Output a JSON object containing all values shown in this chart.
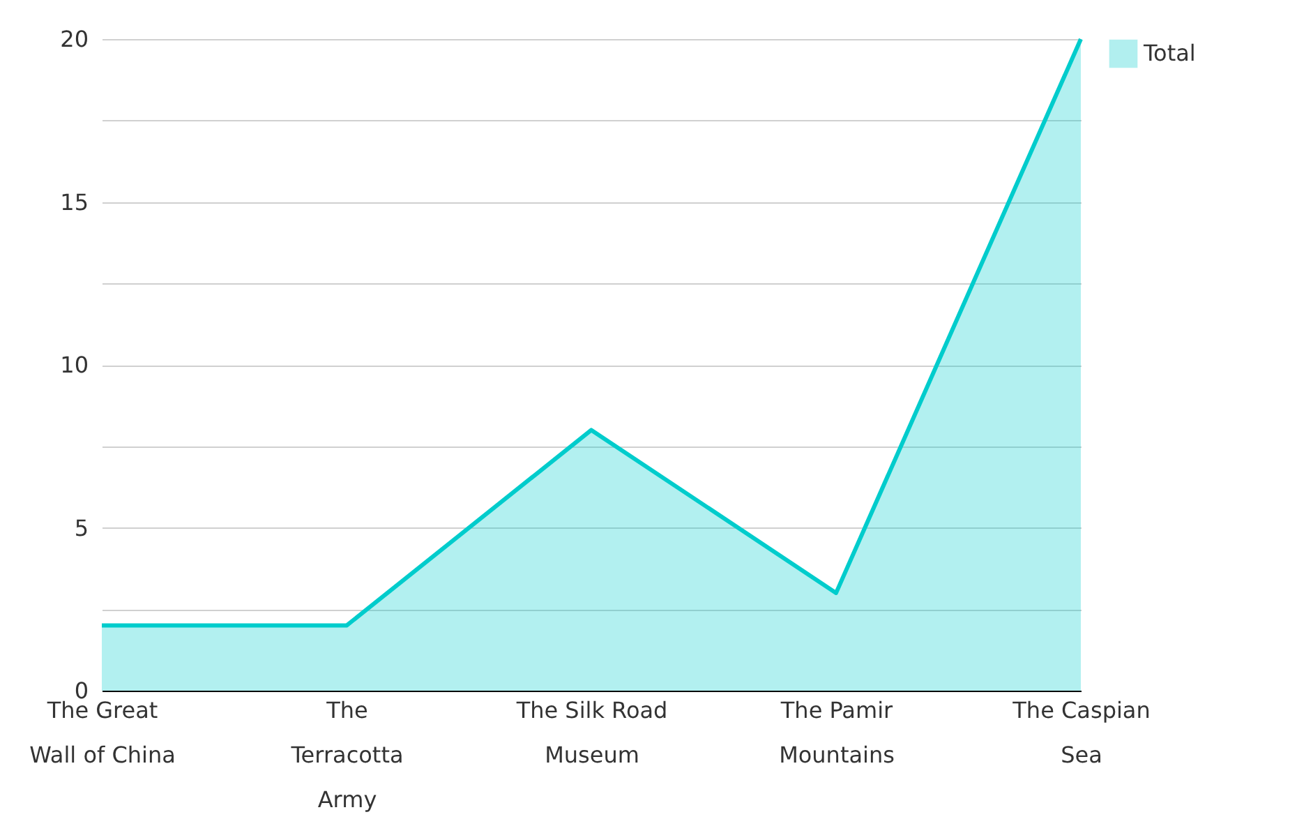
{
  "chart_data": {
    "type": "area",
    "categories": [
      "The Great Wall of China",
      "The Terracotta Army",
      "The Silk Road Museum",
      "The Pamir Mountains",
      "The Caspian Sea"
    ],
    "series": [
      {
        "name": "Total",
        "color": "#00cccc",
        "values": [
          2,
          2,
          8,
          3,
          20
        ]
      }
    ],
    "ylim": [
      0,
      20
    ],
    "yticks": [
      0,
      {
        "value": 2.5,
        "label": null
      },
      5,
      {
        "value": 7.5,
        "label": null
      },
      10,
      {
        "value": 12.5,
        "label": null
      },
      15,
      {
        "value": 17.5,
        "label": null
      },
      20
    ],
    "grid": "y",
    "legend": "top right"
  }
}
